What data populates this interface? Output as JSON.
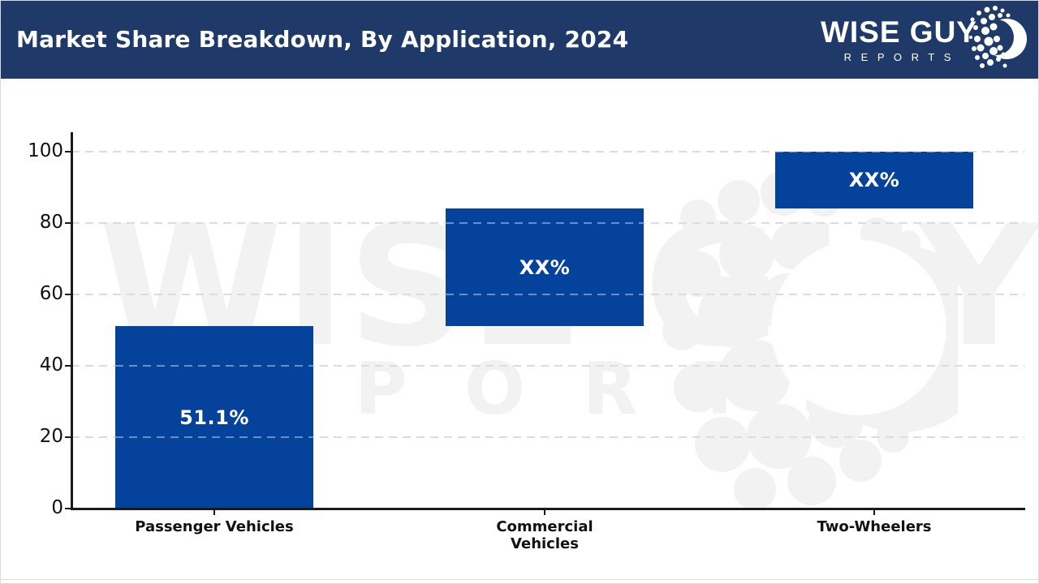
{
  "header": {
    "title": "Market Share Breakdown, By Application, 2024",
    "logo": {
      "line1": "WISE GUY",
      "line2": "R E P O R T S"
    }
  },
  "watermark": {
    "line1": "WISE GUY",
    "line2": "R E P O R T S"
  },
  "chart_data": {
    "type": "bar",
    "subtype": "stacked-breakdown-waterfall",
    "title": "Market Share Breakdown, By Application, 2024",
    "categories": [
      "Passenger Vehicles",
      "Commercial Vehicles",
      "Two-Wheelers"
    ],
    "categories_display": [
      [
        "Passenger Vehicles"
      ],
      [
        "Commercial",
        "Vehicles"
      ],
      [
        "Two-Wheelers"
      ]
    ],
    "series": [
      {
        "name": "Market Share",
        "segments": [
          {
            "category": "Passenger Vehicles",
            "start": 0,
            "end": 51.1,
            "label": "51.1%"
          },
          {
            "category": "Commercial Vehicles",
            "start": 51.1,
            "end": 84.1,
            "label": "XX%"
          },
          {
            "category": "Two-Wheelers",
            "start": 84.1,
            "end": 100,
            "label": "XX%"
          }
        ]
      }
    ],
    "values_pct": [
      51.1,
      33.0,
      15.9
    ],
    "bar_labels": [
      "51.1%",
      "XX%",
      "XX%"
    ],
    "xlabel": "",
    "ylabel": "",
    "ylim": [
      0,
      100
    ],
    "yticks": [
      0,
      20,
      40,
      60,
      80,
      100
    ],
    "yticklabels": [
      "0",
      "20",
      "40",
      "60",
      "80",
      "100"
    ],
    "grid": "horizontal dashed",
    "legend": "none",
    "bar_color": "#05429c",
    "header_color": "#1f3a68",
    "gridline_color": "#dcdcdc"
  }
}
